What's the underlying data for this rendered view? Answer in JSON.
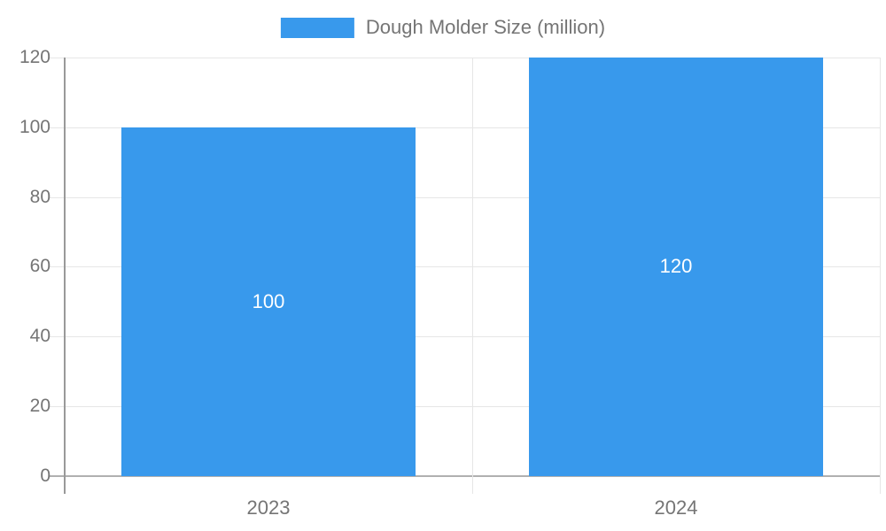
{
  "legend": {
    "label": "Dough Molder Size (million)",
    "swatch_color": "#3899ec"
  },
  "chart_data": {
    "type": "bar",
    "title": "",
    "xlabel": "",
    "ylabel": "",
    "categories": [
      "2023",
      "2024"
    ],
    "series": [
      {
        "name": "Dough Molder Size (million)",
        "values": [
          100,
          120
        ],
        "color": "#3899ec"
      }
    ],
    "value_labels": [
      "100",
      "120"
    ],
    "ylim": [
      0,
      120
    ],
    "yticks": [
      0,
      20,
      40,
      60,
      80,
      100,
      120
    ],
    "grid": true,
    "legend_position": "top"
  },
  "colors": {
    "bar": "#3899ec",
    "text": "#757575",
    "gridline": "#e6e6e6",
    "axis": "#999999",
    "baseline": "#b0b0b0",
    "value_label": "#ffffff"
  }
}
